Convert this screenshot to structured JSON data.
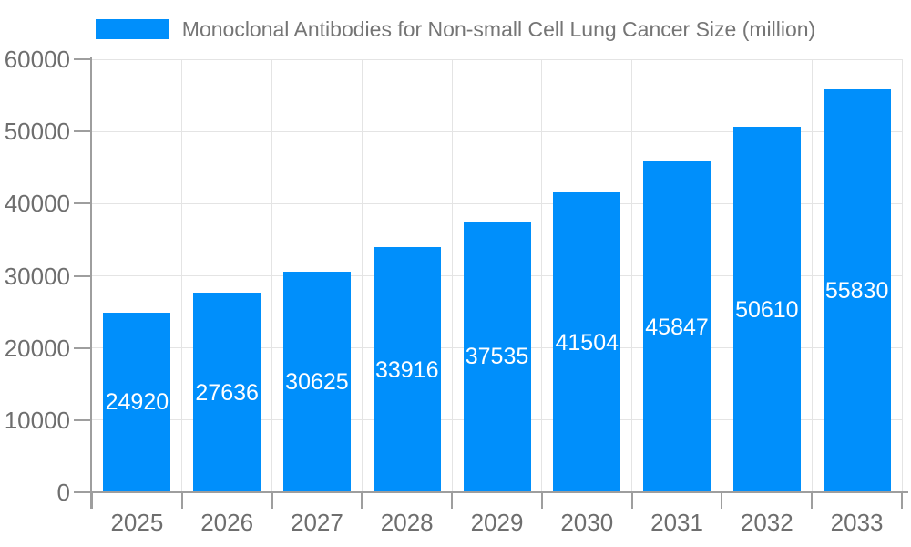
{
  "legend": {
    "label": "Monoclonal Antibodies for Non-small Cell Lung Cancer Size (million)",
    "swatch_color": "#008FFB"
  },
  "chart_data": {
    "type": "bar",
    "title": "Monoclonal Antibodies for Non-small Cell Lung Cancer Size (million)",
    "categories": [
      "2025",
      "2026",
      "2027",
      "2028",
      "2029",
      "2030",
      "2031",
      "2032",
      "2033"
    ],
    "values": [
      24920,
      27636,
      30625,
      33916,
      37535,
      41504,
      45847,
      50610,
      55830
    ],
    "series": [
      {
        "name": "Monoclonal Antibodies for Non-small Cell Lung Cancer Size (million)",
        "values": [
          24920,
          27636,
          30625,
          33916,
          37535,
          41504,
          45847,
          50610,
          55830
        ]
      }
    ],
    "xlabel": "",
    "ylabel": "",
    "ylim": [
      0,
      60000
    ],
    "yticks": [
      0,
      10000,
      20000,
      30000,
      40000,
      50000,
      60000
    ],
    "grid": true,
    "legend_position": "top",
    "bar_label_position": "inside-center"
  },
  "colors": {
    "bar": "#008FFB",
    "bar_label_text": "#ffffff",
    "grid_line": "#e4e4e4",
    "axis_line": "#9e9e9e",
    "tick_text": "#6e6e6e",
    "title_text": "#757575",
    "background": "#ffffff"
  }
}
